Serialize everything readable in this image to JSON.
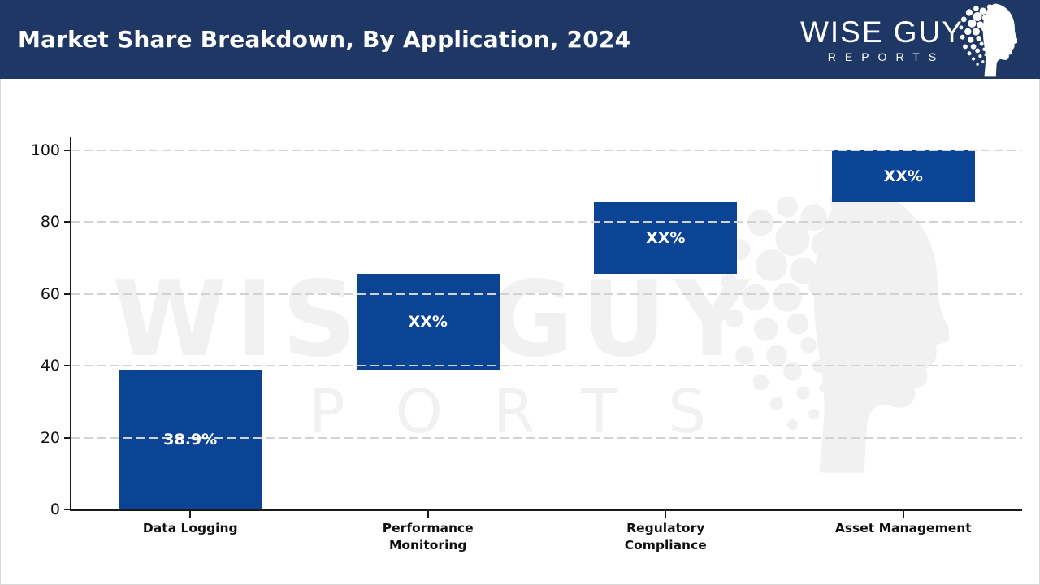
{
  "header": {
    "title": "Market Share Breakdown, By Application, 2024",
    "logo": {
      "line1": "WISE GUY",
      "line2": "REPORTS"
    }
  },
  "watermark": {
    "line1": "WISE GUY",
    "line2": "REPORTS"
  },
  "colors": {
    "header_bg": "#1f3765",
    "bar": "#0b4395",
    "grid": "#d2d2d2",
    "axis": "#1a1a1a",
    "bar_label_text": "#ffffff",
    "watermark": "#f1f1f2"
  },
  "chart_data": {
    "type": "bar",
    "subtype": "waterfall-floating-bars",
    "title": "Market Share Breakdown, By Application, 2024",
    "categories": [
      [
        "Data Logging"
      ],
      [
        "Performance",
        "Monitoring"
      ],
      [
        "Regulatory",
        "Compliance"
      ],
      [
        "Asset Management"
      ]
    ],
    "segments": [
      {
        "category": "Data Logging",
        "start": 0,
        "end": 38.9,
        "label": "38.9%"
      },
      {
        "category": "Performance Monitoring",
        "start": 38.9,
        "end": 65.5,
        "label": "XX%"
      },
      {
        "category": "Regulatory Compliance",
        "start": 65.5,
        "end": 85.7,
        "label": "XX%"
      },
      {
        "category": "Asset Management",
        "start": 85.7,
        "end": 100,
        "label": "XX%"
      }
    ],
    "xlabel": "",
    "ylabel": "",
    "ylim": [
      0,
      100
    ],
    "yticks": [
      0,
      20,
      40,
      60,
      80,
      100
    ],
    "grid": "horizontal dashed, drawn over bars",
    "legend": "none",
    "bar_color": "#0b4395"
  }
}
